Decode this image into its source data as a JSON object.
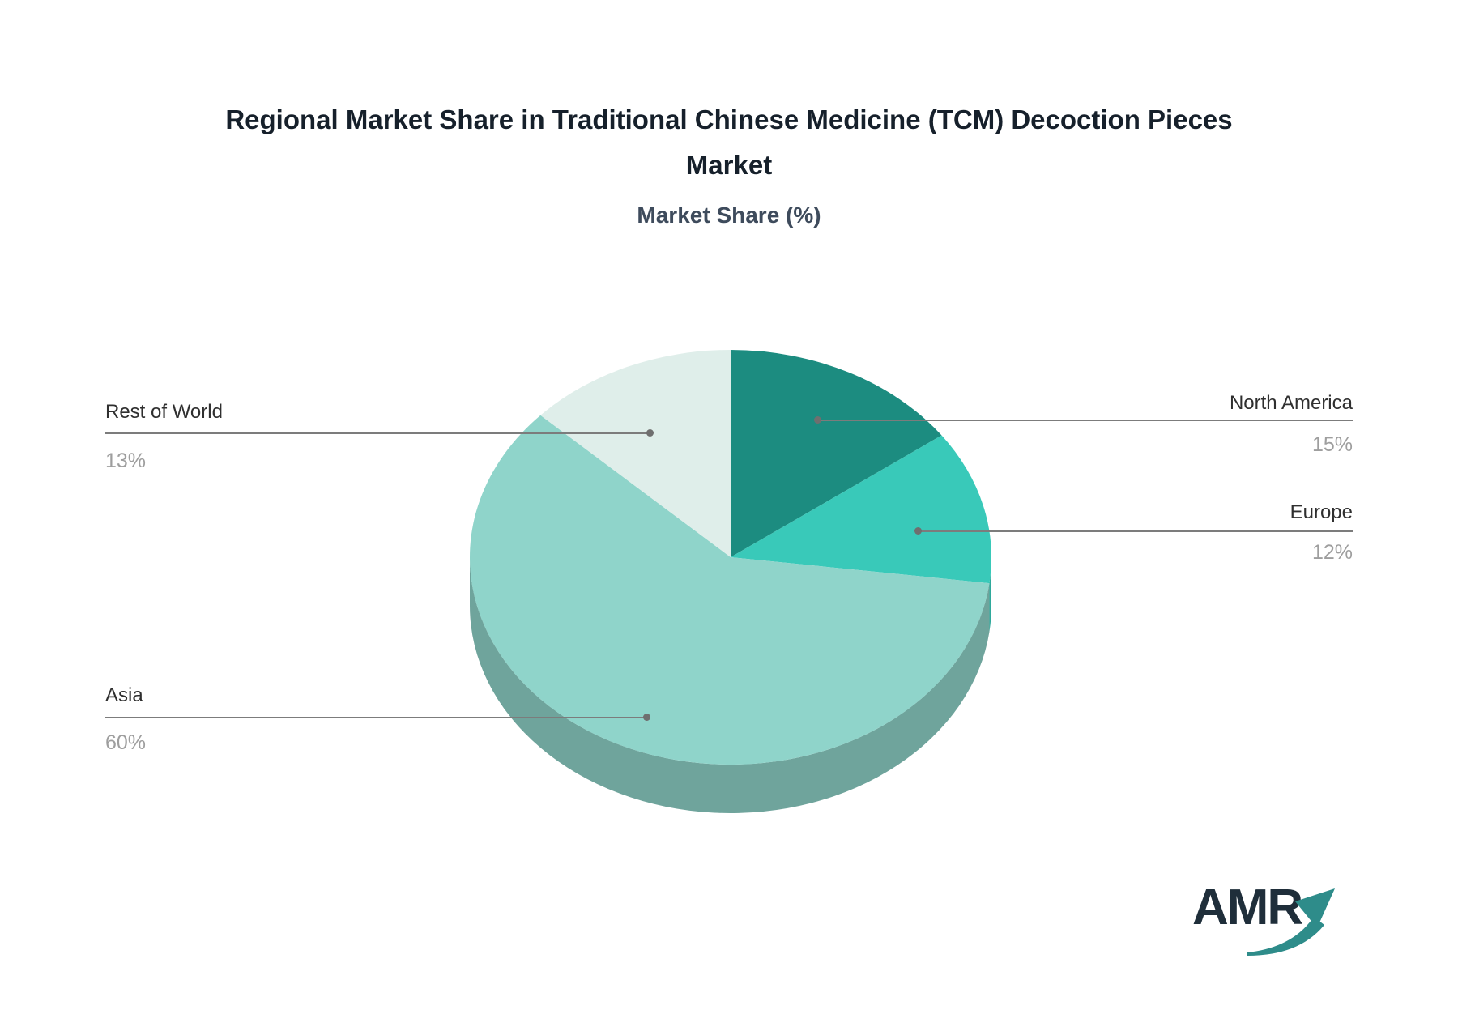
{
  "title_lines": [
    "Regional Market Share in Traditional Chinese Medicine (TCM) Decoction Pieces",
    "Market"
  ],
  "subtitle": "Market Share (%)",
  "chart_data": {
    "type": "pie",
    "title": "Regional Market Share in Traditional Chinese Medicine (TCM) Decoction Pieces Market",
    "subtitle": "Market Share (%)",
    "unit": "%",
    "direction": "clockwise",
    "start_angle_deg": 0,
    "effect": "3d",
    "legend_position": "callout-labels",
    "slices": [
      {
        "label": "North America",
        "value": 15,
        "color": "#1C8C80"
      },
      {
        "label": "Europe",
        "value": 12,
        "color": "#39C9B9",
        "side_color": "#2FA99C"
      },
      {
        "label": "Asia",
        "value": 60,
        "color": "#8FD4CA",
        "side_color": "#6FA49C"
      },
      {
        "label": "Rest of World",
        "value": 13,
        "color": "#DFEEEA"
      }
    ]
  },
  "callouts": {
    "north_america": {
      "name": "North America",
      "value": "15%"
    },
    "europe": {
      "name": "Europe",
      "value": "12%"
    },
    "asia": {
      "name": "Asia",
      "value": "60%"
    },
    "rest_of_world": {
      "name": "Rest of World",
      "value": "13%"
    }
  },
  "logo": {
    "text": "AMR"
  },
  "colors": {
    "title": "#16202B",
    "subtitle": "#3E4B5C",
    "callout_name": "#2F2F2F",
    "callout_value": "#9E9E9E",
    "leader_line": "#7C7C7C",
    "leader_dot": "#6F6F6F",
    "logo_text": "#1F2E3A",
    "logo_arrow": "#2E8C8A",
    "background": "#FFFFFF"
  }
}
